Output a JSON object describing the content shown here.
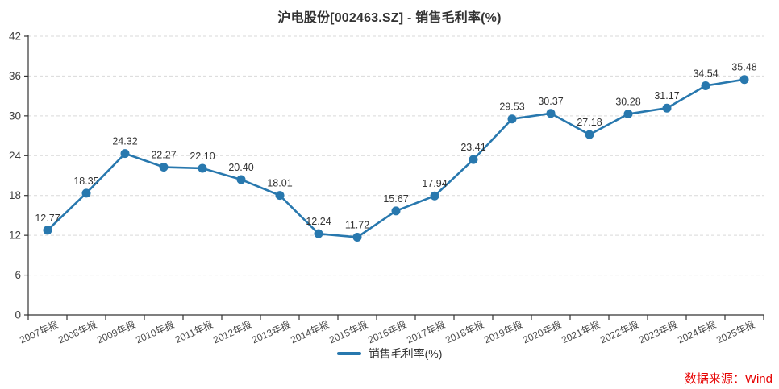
{
  "title": "沪电股份[002463.SZ] - 销售毛利率(%)",
  "legend": {
    "label": "销售毛利率(%)"
  },
  "source": "数据来源：Wind",
  "colors": {
    "series_blue": "#2878ae",
    "axis": "#333333",
    "grid": "#d9d9d9",
    "tick_label": "#404040",
    "value_label": "#333333",
    "source_red": "#e60000"
  },
  "chart_data": {
    "type": "line",
    "title": "沪电股份[002463.SZ] - 销售毛利率(%)",
    "categories": [
      "2007年报",
      "2008年报",
      "2009年报",
      "2010年报",
      "2011年报",
      "2012年报",
      "2013年报",
      "2014年报",
      "2015年报",
      "2016年报",
      "2017年报",
      "2018年报",
      "2019年报",
      "2020年报",
      "2021年报",
      "2022年报",
      "2023年报",
      "2024年报",
      "2025年报"
    ],
    "series": [
      {
        "name": "销售毛利率(%)",
        "values": [
          12.77,
          18.35,
          24.32,
          22.27,
          22.1,
          20.4,
          18.01,
          12.24,
          11.72,
          15.67,
          17.94,
          23.41,
          29.53,
          30.37,
          27.18,
          30.28,
          31.17,
          34.54,
          35.48
        ]
      }
    ],
    "xlabel": "",
    "ylabel": "",
    "ylim": [
      0,
      42
    ],
    "yticks": [
      0,
      6,
      12,
      18,
      24,
      30,
      36,
      42
    ],
    "grid": "horizontal-dashed",
    "legend_position": "bottom",
    "data_labels": "visible, 2 decimals, above points"
  }
}
